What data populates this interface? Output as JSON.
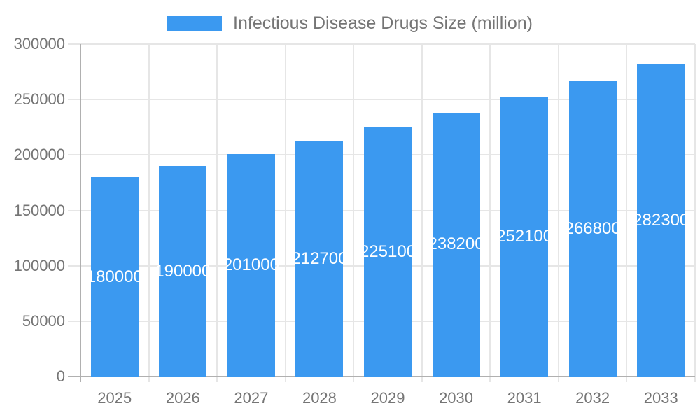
{
  "legend": {
    "label": "Infectious Disease Drugs Size (million)",
    "swatch_color": "#3B99F0"
  },
  "chart_data": {
    "type": "bar",
    "title": "Infectious Disease Drugs Size (million)",
    "series_name": "Infectious Disease Drugs Size (million)",
    "categories": [
      "2025",
      "2026",
      "2027",
      "2028",
      "2029",
      "2030",
      "2031",
      "2032",
      "2033"
    ],
    "values": [
      180000,
      190000,
      201000,
      212700,
      225100,
      238200,
      252100,
      266800,
      282300
    ],
    "bar_value_labels": [
      "180000",
      "190000",
      "201000",
      "212700",
      "225100",
      "238200",
      "252100",
      "266800",
      "282300"
    ],
    "xlabel": "",
    "ylabel": "",
    "ylim": [
      0,
      300000
    ],
    "ytick_step": 50000,
    "yticks": [
      0,
      50000,
      100000,
      150000,
      200000,
      250000,
      300000
    ],
    "ytick_labels": [
      "0",
      "50000",
      "100000",
      "150000",
      "200000",
      "250000",
      "300000"
    ],
    "grid": true,
    "legend_position": "top",
    "colors": {
      "bar": "#3B99F0",
      "bar_label_text": "#ffffff",
      "axis_text": "#757575",
      "grid_line": "#e6e6e6",
      "axis_line": "#b0b0b0",
      "background": "#ffffff"
    }
  }
}
